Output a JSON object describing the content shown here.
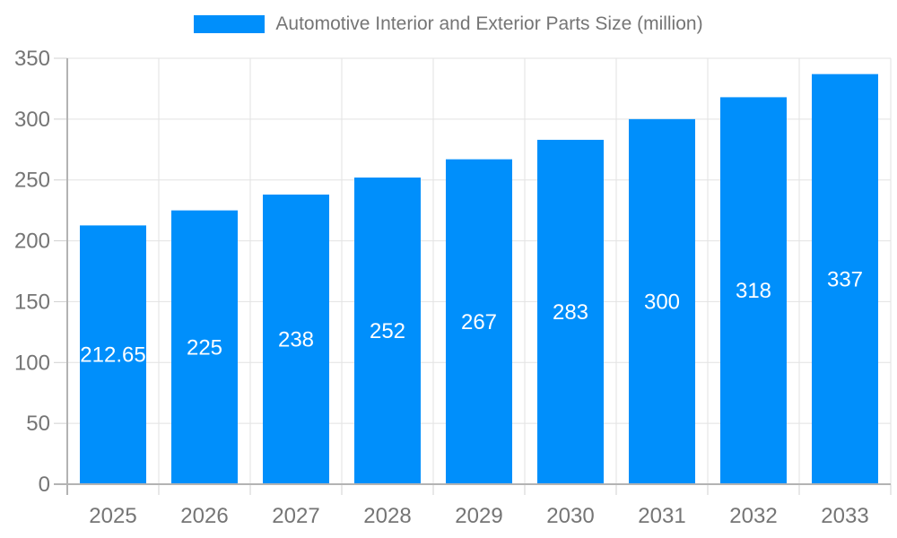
{
  "chart_data": {
    "type": "bar",
    "title": "Automotive Interior and Exterior Parts Size (million)",
    "legend": {
      "label": "Automotive Interior and Exterior Parts Size (million)",
      "position": "top"
    },
    "categories": [
      "2025",
      "2026",
      "2027",
      "2028",
      "2029",
      "2030",
      "2031",
      "2032",
      "2033"
    ],
    "series": [
      {
        "name": "Automotive Interior and Exterior Parts Size (million)",
        "values": [
          212.65,
          225,
          238,
          252,
          267,
          283,
          300,
          318,
          337
        ]
      }
    ],
    "value_labels": [
      "212.65",
      "225",
      "238",
      "252",
      "267",
      "283",
      "300",
      "318",
      "337"
    ],
    "xlabel": "",
    "ylabel": "",
    "ylim": [
      0,
      350
    ],
    "ytick_step": 50,
    "yticks": [
      "0",
      "50",
      "100",
      "150",
      "200",
      "250",
      "300",
      "350"
    ],
    "grid": true,
    "legend_position": "top",
    "colors": {
      "bar": "#008FFB",
      "value_label": "#ffffff",
      "axis_line": "#b3b3b3",
      "gridline": "#e2e2e2",
      "tick": "#d0d0d0",
      "label_text": "#757575",
      "background": "#ffffff"
    }
  }
}
